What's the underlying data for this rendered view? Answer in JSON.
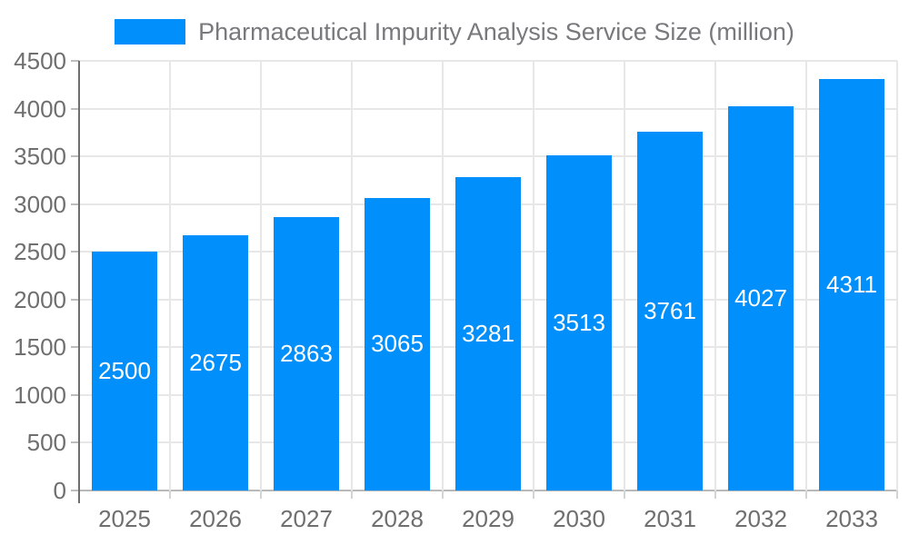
{
  "legend": {
    "label": "Pharmaceutical Impurity Analysis Service Size (million)"
  },
  "colors": {
    "bar": "#008FFB",
    "grid": "#e7e7e7",
    "axis_line": "#6e6e6e",
    "zero_line": "#b9b9b9",
    "axis_text": "#6f6f6f",
    "legend_text": "#78797c",
    "value_label_text": "#ffffff",
    "background": "#ffffff"
  },
  "chart_data": {
    "type": "bar",
    "title": "Pharmaceutical Impurity Analysis Service Size (million)",
    "categories": [
      "2025",
      "2026",
      "2027",
      "2028",
      "2029",
      "2030",
      "2031",
      "2032",
      "2033"
    ],
    "values": [
      2500,
      2675,
      2863,
      3065,
      3281,
      3513,
      3761,
      4027,
      4311
    ],
    "xlabel": "",
    "ylabel": "",
    "ylim": [
      0,
      4500
    ],
    "ytick_step": 500,
    "ytick_labels": [
      "0",
      "500",
      "1000",
      "1500",
      "2000",
      "2500",
      "3000",
      "3500",
      "4000",
      "4500"
    ],
    "grid": true,
    "legend_position": "top-center",
    "data_labels": "inside-center-white",
    "bar_width_ratio": 0.72
  }
}
